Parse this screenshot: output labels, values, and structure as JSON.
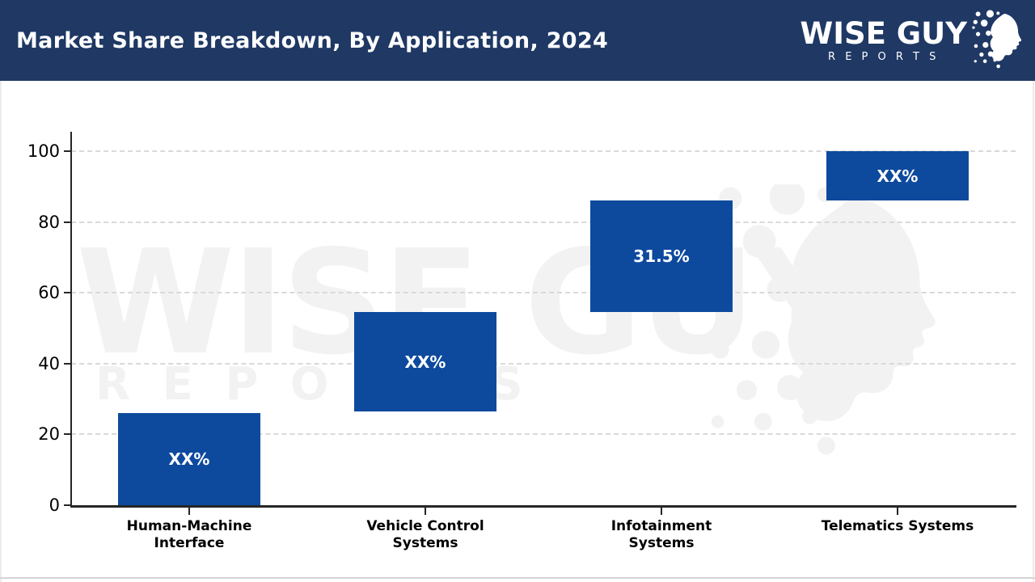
{
  "header": {
    "title": "Market Share Breakdown, By Application, 2024",
    "logo": {
      "wordmark": "WISE GUY",
      "subtitle": "R E P O R T S"
    }
  },
  "watermark": {
    "line1": "WISE GUY",
    "line2": "R E P O R T S"
  },
  "colors": {
    "header_bg": "#1f3864",
    "bar": "#0d4a9e",
    "bar_label": "#ffffff",
    "axis": "#262626",
    "grid": "#d9d9d9",
    "tick_text": "#000000",
    "watermark": "#f2f2f2"
  },
  "chart_data": {
    "type": "bar",
    "variant": "waterfall",
    "title": "Market Share Breakdown, By Application, 2024",
    "categories": [
      "Human-Machine\nInterface",
      "Vehicle Control\nSystems",
      "Infotainment\nSystems",
      "Telematics Systems"
    ],
    "segments": [
      {
        "category": "Human-Machine Interface",
        "start": 0,
        "end": 26,
        "label": "XX%"
      },
      {
        "category": "Vehicle Control Systems",
        "start": 26.5,
        "end": 54.5,
        "label": "XX%"
      },
      {
        "category": "Infotainment Systems",
        "start": 54.5,
        "end": 86,
        "label": "31.5%"
      },
      {
        "category": "Telematics Systems",
        "start": 86,
        "end": 100,
        "label": "XX%"
      }
    ],
    "xlabel": "",
    "ylabel": "",
    "y_ticks": [
      0,
      20,
      40,
      60,
      80,
      100
    ],
    "ylim": [
      0,
      105
    ],
    "grid": "horizontal-dashed",
    "legend": null
  }
}
